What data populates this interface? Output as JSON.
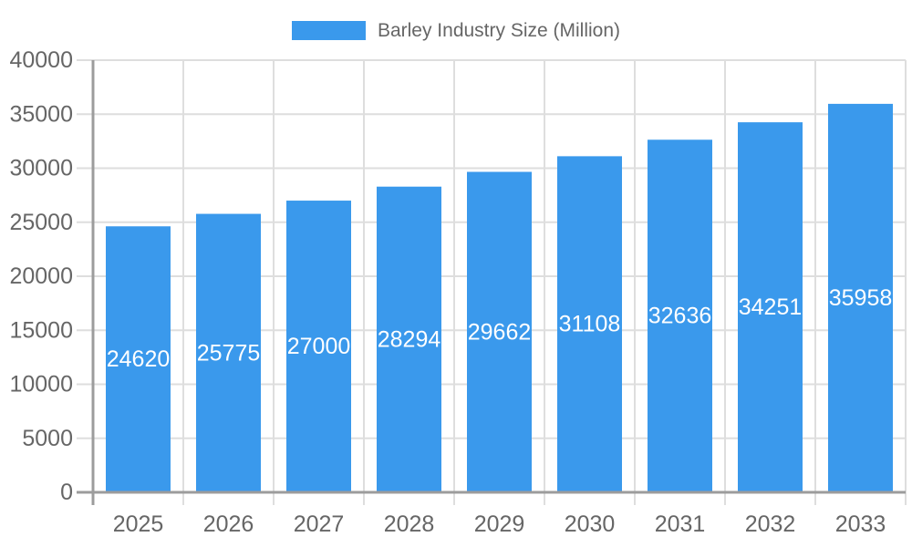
{
  "legend": {
    "label": "Barley Industry Size (Million)"
  },
  "chart_data": {
    "type": "bar",
    "title": "Barley Industry Size (Million)",
    "series_name": "Barley Industry Size (Million)",
    "categories": [
      "2025",
      "2026",
      "2027",
      "2028",
      "2029",
      "2030",
      "2031",
      "2032",
      "2033"
    ],
    "values": [
      24620,
      25775,
      27000,
      28294,
      29662,
      31108,
      32636,
      34251,
      35958
    ],
    "value_labels": [
      "24620",
      "25775",
      "27000",
      "28294",
      "29662",
      "31108",
      "32636",
      "34251",
      "35958"
    ],
    "xlabel": "",
    "ylabel": "",
    "ylim": [
      0,
      40000
    ],
    "yticks": [
      0,
      5000,
      10000,
      15000,
      20000,
      25000,
      30000,
      35000,
      40000
    ],
    "ytick_labels": [
      "0",
      "5000",
      "10000",
      "15000",
      "20000",
      "25000",
      "30000",
      "35000",
      "40000"
    ],
    "grid": true,
    "legend_position": "top",
    "colors": {
      "bar": "#3A99EC",
      "grid": "#DEDEDE",
      "axis": "#9C9C9C",
      "tick_text": "#666666",
      "value_text": "#FFFFFF",
      "legend_text": "#666666"
    }
  }
}
